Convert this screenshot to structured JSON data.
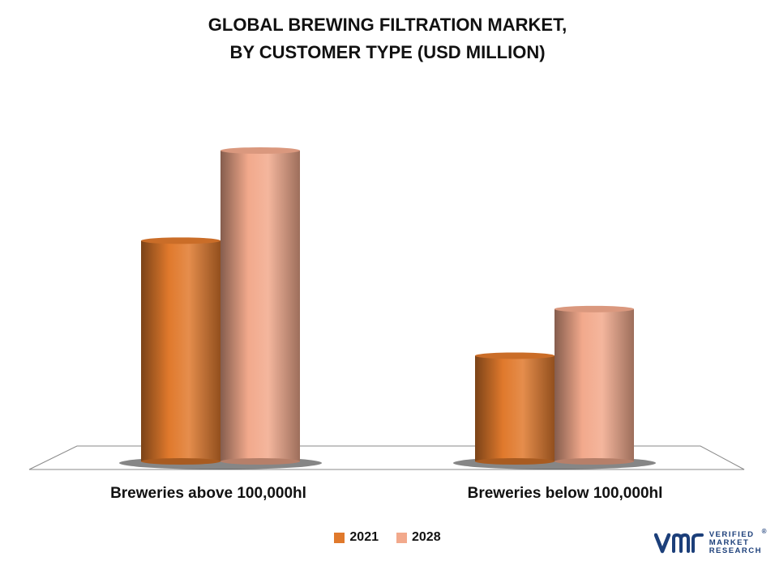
{
  "title_line1": "GLOBAL BREWING FILTRATION MARKET,",
  "title_line2": "BY CUSTOMER TYPE (USD MILLION)",
  "colors": {
    "series_2021": "#e0792c",
    "series_2028": "#f2a98c",
    "logo": "#1c3f7a"
  },
  "logo": {
    "lines": [
      "VERIFIED",
      "MARKET",
      "RESEARCH"
    ],
    "mark": "®"
  },
  "chart_data": {
    "type": "bar",
    "style": "3d-cylinder",
    "categories": [
      "Breweries above 100,000hl",
      "Breweries below 100,000hl"
    ],
    "series": [
      {
        "name": "2021",
        "values": [
          71,
          34
        ]
      },
      {
        "name": "2028",
        "values": [
          100,
          49
        ]
      }
    ],
    "ylim": [
      0,
      100
    ],
    "grid": false,
    "legend": "bottom-center",
    "xlabel": "",
    "ylabel": ""
  }
}
